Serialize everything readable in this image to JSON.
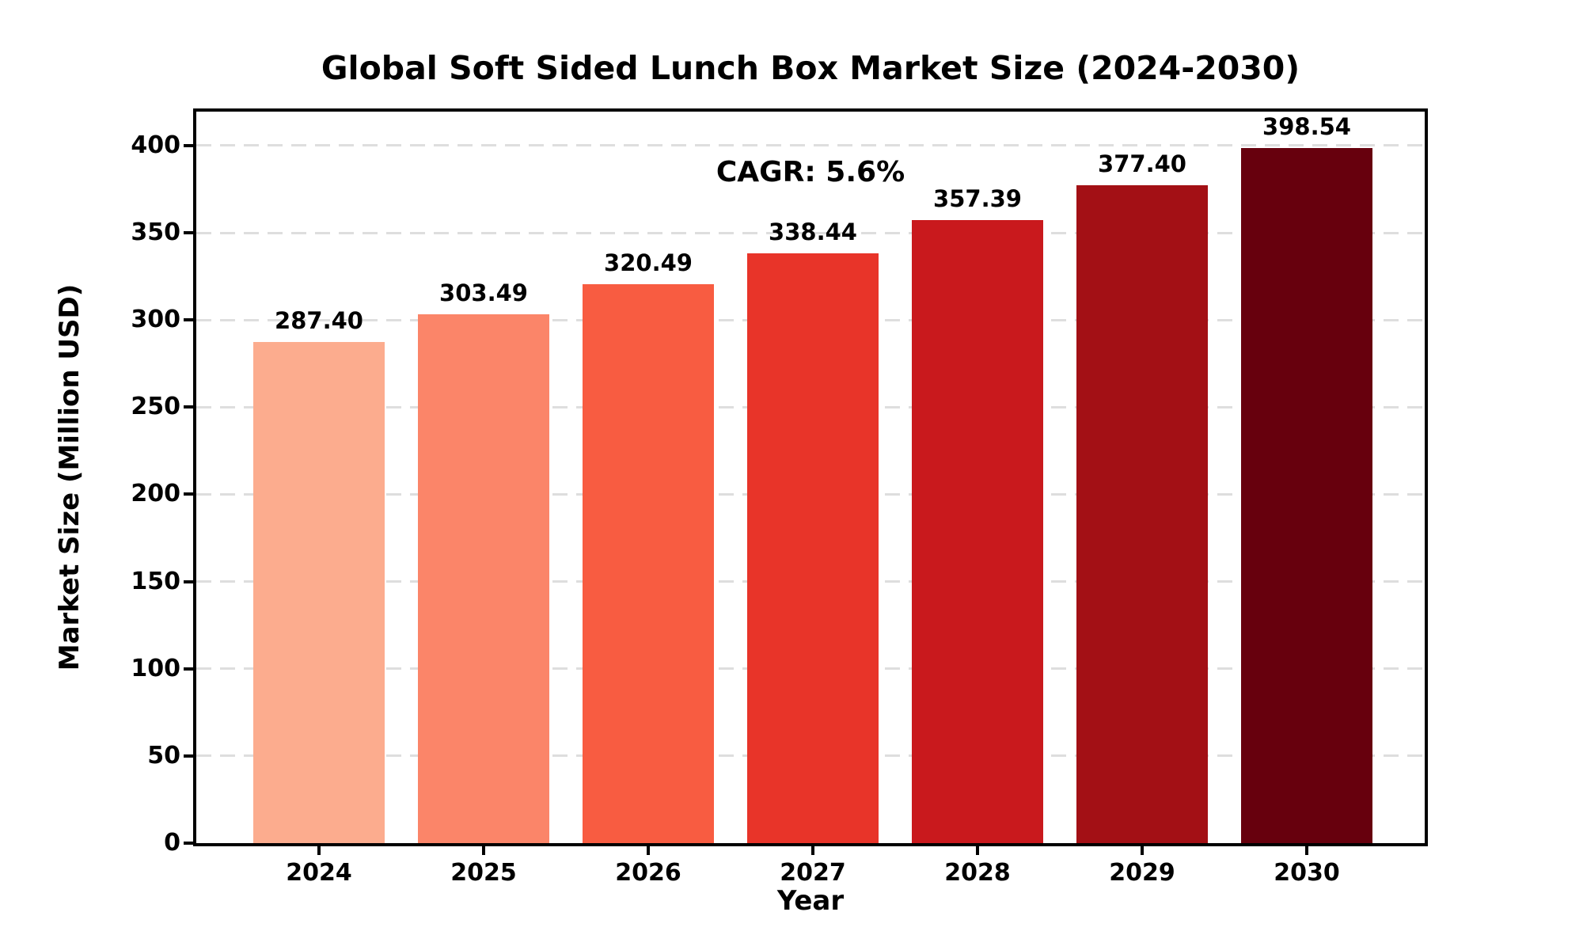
{
  "chart_data": {
    "type": "bar",
    "title": "Global Soft Sided Lunch Box Market Size (2024-2030)",
    "xlabel": "Year",
    "ylabel": "Market Size (Million USD)",
    "annotation": "CAGR: 5.6%",
    "categories": [
      "2024",
      "2025",
      "2026",
      "2027",
      "2028",
      "2029",
      "2030"
    ],
    "values": [
      287.4,
      303.49,
      320.49,
      338.44,
      357.39,
      377.4,
      398.54
    ],
    "value_labels": [
      "287.40",
      "303.49",
      "320.49",
      "338.44",
      "357.39",
      "377.40",
      "398.54"
    ],
    "bar_colors": [
      "#FCAC8E",
      "#FB8569",
      "#F85C41",
      "#E83429",
      "#C9191D",
      "#A31015",
      "#67000D"
    ],
    "yticks": [
      0,
      50,
      100,
      150,
      200,
      250,
      300,
      350,
      400
    ],
    "ylim": [
      0,
      419.5
    ],
    "grid": "horizontal-dashed",
    "grid_color": "#dedede",
    "background_color": "#ffffff",
    "spine_color": "#000000",
    "text_color": "#000000"
  }
}
